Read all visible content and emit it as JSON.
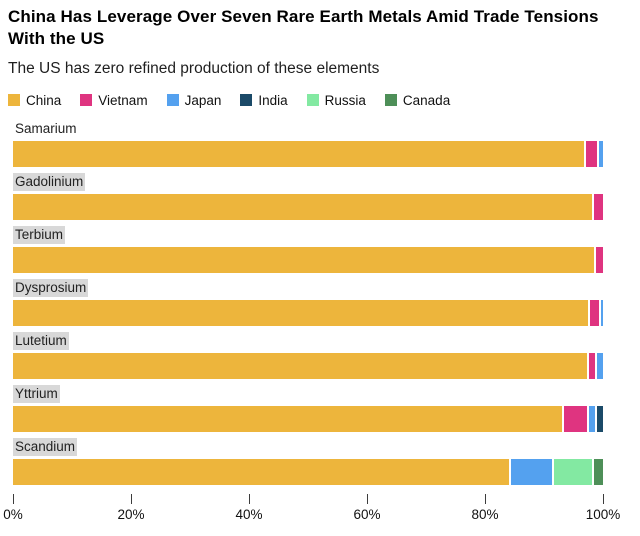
{
  "header": {
    "title": "China Has Leverage Over Seven Rare Earth Metals Amid Trade Tensions With the US",
    "subtitle": "The US has zero refined production of these elements"
  },
  "chart_data": {
    "type": "bar",
    "orientation": "horizontal",
    "stacked": true,
    "unit": "percent",
    "title": "China Has Leverage Over Seven Rare Earth Metals Amid Trade Tensions With the US",
    "subtitle": "The US has zero refined production of these elements",
    "categories": [
      "Samarium",
      "Gadolinium",
      "Terbium",
      "Dysprosium",
      "Lutetium",
      "Yttrium",
      "Scandium"
    ],
    "category_label_highlighted": [
      false,
      true,
      true,
      true,
      true,
      true,
      true
    ],
    "series": [
      {
        "name": "China",
        "color": "#EDB53C",
        "values": [
          97.5,
          98.5,
          98.8,
          98.2,
          98.0,
          94.0,
          85.0
        ]
      },
      {
        "name": "Vietnam",
        "color": "#DF3480",
        "values": [
          1.8,
          1.5,
          1.2,
          1.4,
          1.0,
          4.0,
          0
        ]
      },
      {
        "name": "Japan",
        "color": "#54A1EF",
        "values": [
          0.7,
          0,
          0,
          0.4,
          1.0,
          1.0,
          7.0
        ]
      },
      {
        "name": "India",
        "color": "#1B4A68",
        "values": [
          0,
          0,
          0,
          0,
          0,
          1.0,
          0
        ]
      },
      {
        "name": "Russia",
        "color": "#83E9A2",
        "values": [
          0,
          0,
          0,
          0,
          0,
          0,
          6.5
        ]
      },
      {
        "name": "Canada",
        "color": "#4E8F58",
        "values": [
          0,
          0,
          0,
          0,
          0,
          0,
          1.5
        ]
      }
    ],
    "legend": [
      "China",
      "Vietnam",
      "Japan",
      "India",
      "Russia",
      "Canada"
    ],
    "legend_position": "top",
    "x_ticks": [
      "0%",
      "20%",
      "40%",
      "60%",
      "80%",
      "100%"
    ],
    "x_tick_values": [
      0,
      20,
      40,
      60,
      80,
      100
    ],
    "xlim": [
      0,
      100
    ],
    "grid": false
  }
}
